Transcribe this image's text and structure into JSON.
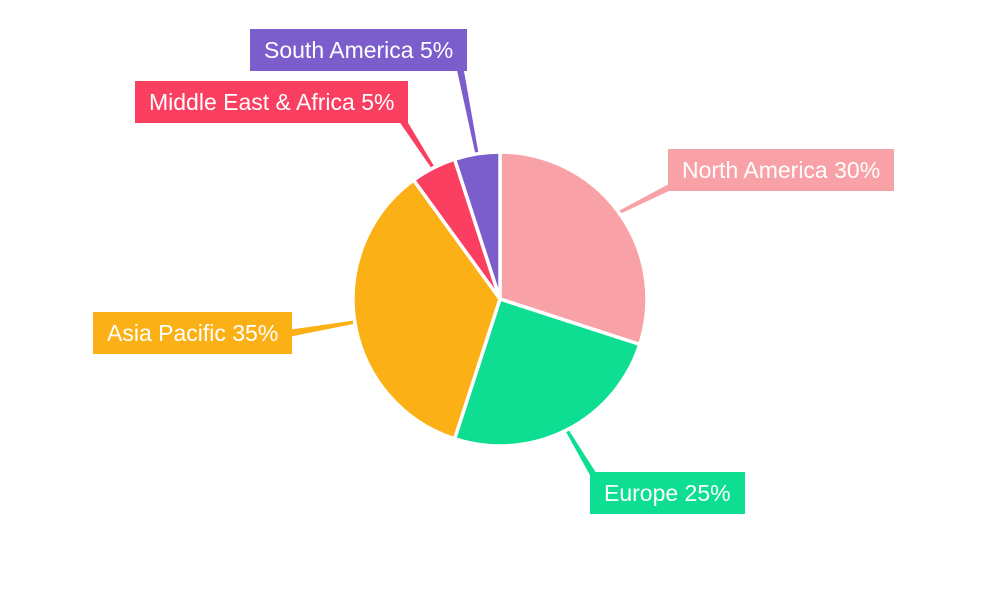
{
  "chart_data": {
    "type": "pie",
    "title": "",
    "start_angle_deg": 0,
    "direction": "clockwise",
    "background_color": "#ffffff",
    "label_text_color": "#ffffff",
    "slice_gap_color": "#ffffff",
    "legend_position": "none",
    "label_style": "callout-boxes-with-leader-lines",
    "categories": [
      "North America",
      "Europe",
      "Asia Pacific",
      "Middle East & Africa",
      "South America"
    ],
    "values": [
      30,
      25,
      35,
      5,
      5
    ],
    "slices": [
      {
        "name": "North America",
        "value": 30,
        "color": "#f8a2a7",
        "label": "North America 30%"
      },
      {
        "name": "Europe",
        "value": 25,
        "color": "#0dde92",
        "label": "Europe 25%"
      },
      {
        "name": "Asia Pacific",
        "value": 35,
        "color": "#fbb016",
        "label": "Asia Pacific 35%"
      },
      {
        "name": "Middle East & Africa",
        "value": 5,
        "color": "#fa3f61",
        "label": "Middle East & Africa 5%"
      },
      {
        "name": "South America",
        "value": 5,
        "color": "#7b5ecb",
        "label": "South America 5%"
      }
    ]
  }
}
